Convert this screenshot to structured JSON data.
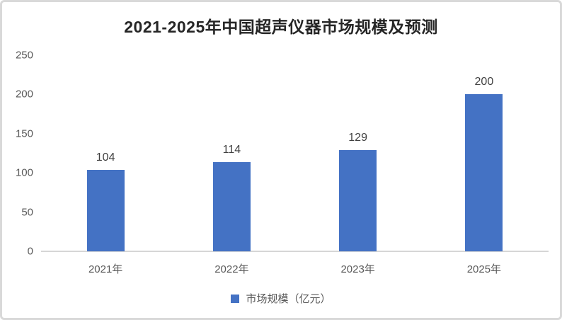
{
  "chart_data": {
    "type": "bar",
    "title": "2021-2025年中国超声仪器市场规模及预测",
    "categories": [
      "2021年",
      "2022年",
      "2023年",
      "2025年"
    ],
    "values": [
      104,
      114,
      129,
      200
    ],
    "series_name": "市场规模（亿元）",
    "xlabel": "",
    "ylabel": "",
    "ylim": [
      0,
      250
    ],
    "yticks": [
      0,
      50,
      100,
      150,
      200,
      250
    ],
    "grid": false,
    "legend_position": "bottom",
    "bar_color": "#4472C4",
    "value_label_color": "#404040",
    "tick_label_color": "#595959",
    "title_color": "#262626",
    "axis_line_color": "#d6d6d6",
    "frame_border_color": "#d9d9d9",
    "background_color": "#ffffff"
  }
}
